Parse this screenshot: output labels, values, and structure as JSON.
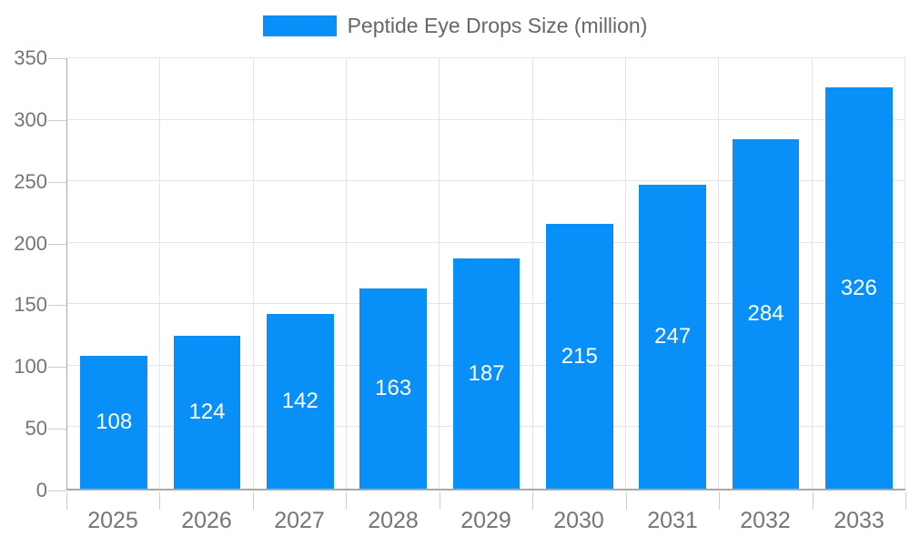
{
  "chart_data": {
    "type": "bar",
    "title": "",
    "xlabel": "",
    "ylabel": "",
    "legend_position": "top",
    "grid": true,
    "series_name": "Peptide Eye Drops Size (million)",
    "categories": [
      "2025",
      "2026",
      "2027",
      "2028",
      "2029",
      "2030",
      "2031",
      "2032",
      "2033"
    ],
    "values": [
      108,
      124,
      142,
      163,
      187,
      215,
      247,
      284,
      326
    ],
    "ylim": [
      0,
      350
    ],
    "y_ticks": [
      0,
      50,
      100,
      150,
      200,
      250,
      300,
      350
    ],
    "colors": {
      "bar": "#0990f8",
      "value_label": "#ffffff",
      "axis": "#a9a9a9",
      "tick": "#cccccc",
      "grid": "#e4e4e4",
      "axis_label": "#757575",
      "legend_text": "#666666",
      "background": "#ffffff"
    }
  }
}
